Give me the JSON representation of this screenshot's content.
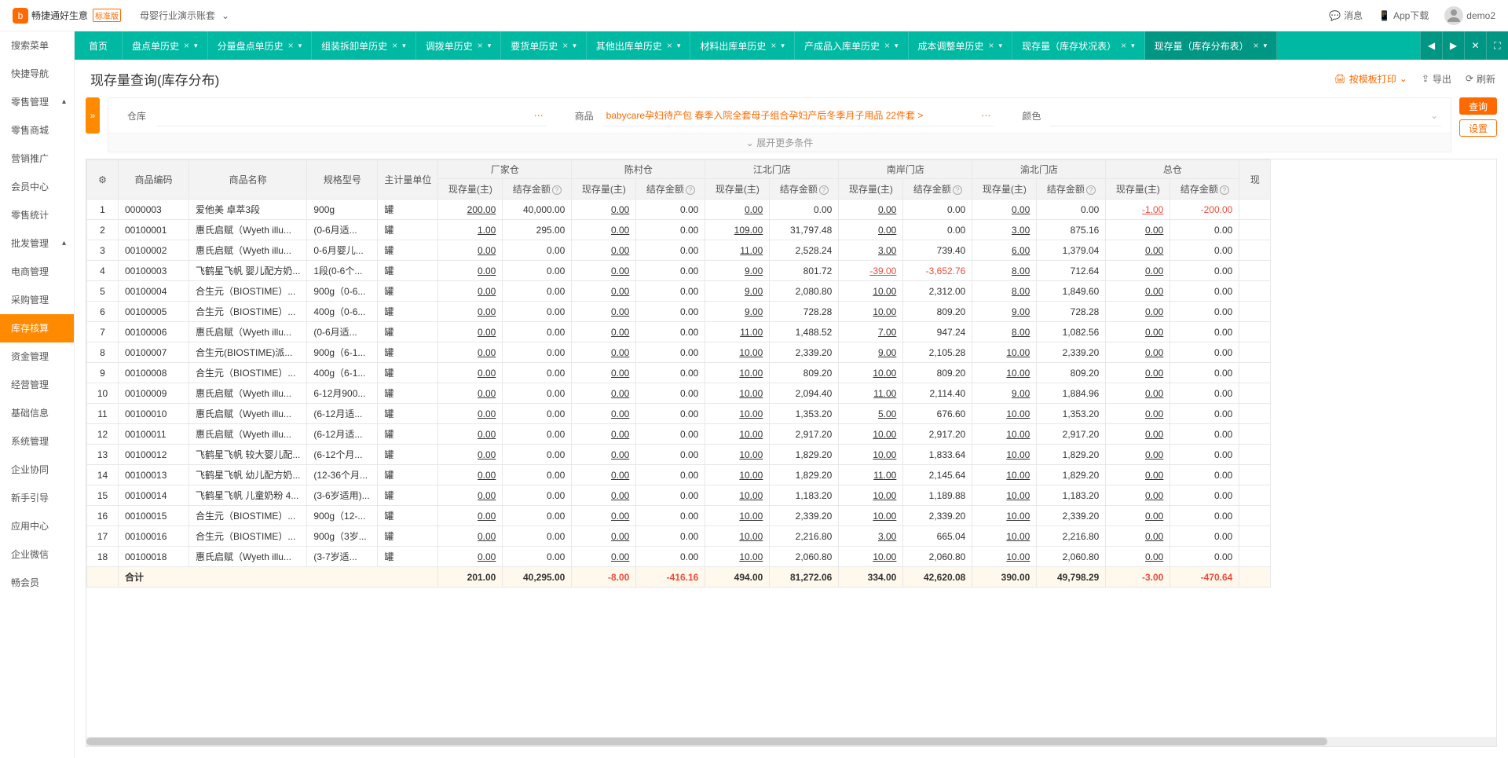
{
  "brand": {
    "name": "畅捷通好生意",
    "edition": "标准版",
    "logo_letter": "b"
  },
  "account_dropdown": "母婴行业演示账套",
  "top_right": {
    "msg": "消息",
    "app": "App下载",
    "user": "demo2"
  },
  "sidebar": {
    "search": "搜索菜单",
    "quick": "快捷导航",
    "groups": [
      {
        "label": "零售管理",
        "expanded": true,
        "children": [
          "零售商城",
          "营销推广",
          "会员中心",
          "零售统计"
        ]
      },
      {
        "label": "批发管理",
        "expanded": true,
        "children": [
          "电商管理",
          "采购管理",
          "库存核算",
          "资金管理",
          "经营管理",
          "基础信息",
          "系统管理",
          "企业协同",
          "新手引导",
          "应用中心",
          "企业微信",
          "畅会员"
        ],
        "active_child": "库存核算"
      }
    ]
  },
  "tabs": {
    "home": "首页",
    "items": [
      "盘点单历史",
      "分量盘点单历史",
      "组装拆卸单历史",
      "调拨单历史",
      "要货单历史",
      "其他出库单历史",
      "材料出库单历史",
      "产成品入库单历史",
      "成本调整单历史",
      "现存量（库存状况表）",
      "现存量（库存分布表）"
    ],
    "active_index": 10
  },
  "page": {
    "title": "现存量查询(库存分布)",
    "print": "按模板打印",
    "export": "导出",
    "refresh": "刷新"
  },
  "filters": {
    "warehouse_label": "仓库",
    "product_label": "商品",
    "product_value": "babycare孕妇待产包 春季入院全套母子组合孕妇产后冬季月子用品 22件套 >",
    "color_label": "颜色",
    "expand": "展开更多条件",
    "query": "查询",
    "setting": "设置"
  },
  "table": {
    "gear": "⚙",
    "headers_fixed": [
      "商品编码",
      "商品名称",
      "规格型号",
      "主计量单位"
    ],
    "warehouses": [
      "厂家仓",
      "陈村仓",
      "江北门店",
      "南岸门店",
      "渝北门店",
      "总仓"
    ],
    "sub_qty": "现存量(主)",
    "sub_amt": "结存金额",
    "extra_qty": "现",
    "rows": [
      {
        "n": 1,
        "code": "0000003",
        "name": "爱他美 卓萃3段",
        "spec": "900g",
        "unit": "罐",
        "v": [
          [
            "200.00",
            "40,000.00"
          ],
          [
            "0.00",
            "0.00"
          ],
          [
            "0.00",
            "0.00"
          ],
          [
            "0.00",
            "0.00"
          ],
          [
            "0.00",
            "0.00"
          ],
          [
            "-1.00",
            "-200.00"
          ]
        ],
        "neg": [
          5
        ]
      },
      {
        "n": 2,
        "code": "00100001",
        "name": "惠氏启赋（Wyeth illu...",
        "spec": "(0-6月适...",
        "unit": "罐",
        "v": [
          [
            "1.00",
            "295.00"
          ],
          [
            "0.00",
            "0.00"
          ],
          [
            "109.00",
            "31,797.48"
          ],
          [
            "0.00",
            "0.00"
          ],
          [
            "3.00",
            "875.16"
          ],
          [
            "0.00",
            "0.00"
          ]
        ]
      },
      {
        "n": 3,
        "code": "00100002",
        "name": "惠氏启赋（Wyeth illu...",
        "spec": "0-6月婴儿...",
        "unit": "罐",
        "v": [
          [
            "0.00",
            "0.00"
          ],
          [
            "0.00",
            "0.00"
          ],
          [
            "11.00",
            "2,528.24"
          ],
          [
            "3.00",
            "739.40"
          ],
          [
            "6.00",
            "1,379.04"
          ],
          [
            "0.00",
            "0.00"
          ]
        ]
      },
      {
        "n": 4,
        "code": "00100003",
        "name": "飞鹤星飞帆 婴儿配方奶...",
        "spec": "1段(0-6个...",
        "unit": "罐",
        "v": [
          [
            "0.00",
            "0.00"
          ],
          [
            "0.00",
            "0.00"
          ],
          [
            "9.00",
            "801.72"
          ],
          [
            "-39.00",
            "-3,652.76"
          ],
          [
            "8.00",
            "712.64"
          ],
          [
            "0.00",
            "0.00"
          ]
        ],
        "neg": [
          3
        ]
      },
      {
        "n": 5,
        "code": "00100004",
        "name": "合生元（BIOSTIME）...",
        "spec": "900g（0-6...",
        "unit": "罐",
        "v": [
          [
            "0.00",
            "0.00"
          ],
          [
            "0.00",
            "0.00"
          ],
          [
            "9.00",
            "2,080.80"
          ],
          [
            "10.00",
            "2,312.00"
          ],
          [
            "8.00",
            "1,849.60"
          ],
          [
            "0.00",
            "0.00"
          ]
        ]
      },
      {
        "n": 6,
        "code": "00100005",
        "name": "合生元（BIOSTIME）...",
        "spec": "400g（0-6...",
        "unit": "罐",
        "v": [
          [
            "0.00",
            "0.00"
          ],
          [
            "0.00",
            "0.00"
          ],
          [
            "9.00",
            "728.28"
          ],
          [
            "10.00",
            "809.20"
          ],
          [
            "9.00",
            "728.28"
          ],
          [
            "0.00",
            "0.00"
          ]
        ]
      },
      {
        "n": 7,
        "code": "00100006",
        "name": "惠氏启赋（Wyeth illu...",
        "spec": "(0-6月适...",
        "unit": "罐",
        "v": [
          [
            "0.00",
            "0.00"
          ],
          [
            "0.00",
            "0.00"
          ],
          [
            "11.00",
            "1,488.52"
          ],
          [
            "7.00",
            "947.24"
          ],
          [
            "8.00",
            "1,082.56"
          ],
          [
            "0.00",
            "0.00"
          ]
        ]
      },
      {
        "n": 8,
        "code": "00100007",
        "name": "合生元(BIOSTIME)派...",
        "spec": "900g（6-1...",
        "unit": "罐",
        "v": [
          [
            "0.00",
            "0.00"
          ],
          [
            "0.00",
            "0.00"
          ],
          [
            "10.00",
            "2,339.20"
          ],
          [
            "9.00",
            "2,105.28"
          ],
          [
            "10.00",
            "2,339.20"
          ],
          [
            "0.00",
            "0.00"
          ]
        ]
      },
      {
        "n": 9,
        "code": "00100008",
        "name": "合生元（BIOSTIME）...",
        "spec": "400g（6-1...",
        "unit": "罐",
        "v": [
          [
            "0.00",
            "0.00"
          ],
          [
            "0.00",
            "0.00"
          ],
          [
            "10.00",
            "809.20"
          ],
          [
            "10.00",
            "809.20"
          ],
          [
            "10.00",
            "809.20"
          ],
          [
            "0.00",
            "0.00"
          ]
        ]
      },
      {
        "n": 10,
        "code": "00100009",
        "name": "惠氏启赋（Wyeth illu...",
        "spec": "6-12月900...",
        "unit": "罐",
        "v": [
          [
            "0.00",
            "0.00"
          ],
          [
            "0.00",
            "0.00"
          ],
          [
            "10.00",
            "2,094.40"
          ],
          [
            "11.00",
            "2,114.40"
          ],
          [
            "9.00",
            "1,884.96"
          ],
          [
            "0.00",
            "0.00"
          ]
        ]
      },
      {
        "n": 11,
        "code": "00100010",
        "name": "惠氏启赋（Wyeth illu...",
        "spec": "(6-12月适...",
        "unit": "罐",
        "v": [
          [
            "0.00",
            "0.00"
          ],
          [
            "0.00",
            "0.00"
          ],
          [
            "10.00",
            "1,353.20"
          ],
          [
            "5.00",
            "676.60"
          ],
          [
            "10.00",
            "1,353.20"
          ],
          [
            "0.00",
            "0.00"
          ]
        ]
      },
      {
        "n": 12,
        "code": "00100011",
        "name": "惠氏启赋（Wyeth illu...",
        "spec": "(6-12月适...",
        "unit": "罐",
        "v": [
          [
            "0.00",
            "0.00"
          ],
          [
            "0.00",
            "0.00"
          ],
          [
            "10.00",
            "2,917.20"
          ],
          [
            "10.00",
            "2,917.20"
          ],
          [
            "10.00",
            "2,917.20"
          ],
          [
            "0.00",
            "0.00"
          ]
        ]
      },
      {
        "n": 13,
        "code": "00100012",
        "name": "飞鹤星飞帆 较大婴儿配...",
        "spec": "(6-12个月...",
        "unit": "罐",
        "v": [
          [
            "0.00",
            "0.00"
          ],
          [
            "0.00",
            "0.00"
          ],
          [
            "10.00",
            "1,829.20"
          ],
          [
            "10.00",
            "1,833.64"
          ],
          [
            "10.00",
            "1,829.20"
          ],
          [
            "0.00",
            "0.00"
          ]
        ]
      },
      {
        "n": 14,
        "code": "00100013",
        "name": "飞鹤星飞帆 幼儿配方奶...",
        "spec": "(12-36个月...",
        "unit": "罐",
        "v": [
          [
            "0.00",
            "0.00"
          ],
          [
            "0.00",
            "0.00"
          ],
          [
            "10.00",
            "1,829.20"
          ],
          [
            "11.00",
            "2,145.64"
          ],
          [
            "10.00",
            "1,829.20"
          ],
          [
            "0.00",
            "0.00"
          ]
        ]
      },
      {
        "n": 15,
        "code": "00100014",
        "name": "飞鹤星飞帆 儿童奶粉 4...",
        "spec": "(3-6岁适用)...",
        "unit": "罐",
        "v": [
          [
            "0.00",
            "0.00"
          ],
          [
            "0.00",
            "0.00"
          ],
          [
            "10.00",
            "1,183.20"
          ],
          [
            "10.00",
            "1,189.88"
          ],
          [
            "10.00",
            "1,183.20"
          ],
          [
            "0.00",
            "0.00"
          ]
        ]
      },
      {
        "n": 16,
        "code": "00100015",
        "name": "合生元（BIOSTIME）...",
        "spec": "900g（12-...",
        "unit": "罐",
        "v": [
          [
            "0.00",
            "0.00"
          ],
          [
            "0.00",
            "0.00"
          ],
          [
            "10.00",
            "2,339.20"
          ],
          [
            "10.00",
            "2,339.20"
          ],
          [
            "10.00",
            "2,339.20"
          ],
          [
            "0.00",
            "0.00"
          ]
        ]
      },
      {
        "n": 17,
        "code": "00100016",
        "name": "合生元（BIOSTIME）...",
        "spec": "900g（3岁...",
        "unit": "罐",
        "v": [
          [
            "0.00",
            "0.00"
          ],
          [
            "0.00",
            "0.00"
          ],
          [
            "10.00",
            "2,216.80"
          ],
          [
            "3.00",
            "665.04"
          ],
          [
            "10.00",
            "2,216.80"
          ],
          [
            "0.00",
            "0.00"
          ]
        ]
      },
      {
        "n": 18,
        "code": "00100018",
        "name": "惠氏启赋（Wyeth illu...",
        "spec": "(3-7岁适...",
        "unit": "罐",
        "v": [
          [
            "0.00",
            "0.00"
          ],
          [
            "0.00",
            "0.00"
          ],
          [
            "10.00",
            "2,060.80"
          ],
          [
            "10.00",
            "2,060.80"
          ],
          [
            "10.00",
            "2,060.80"
          ],
          [
            "0.00",
            "0.00"
          ]
        ]
      }
    ],
    "total_label": "合计",
    "totals": [
      [
        "201.00",
        "40,295.00"
      ],
      [
        "-8.00",
        "-416.16"
      ],
      [
        "494.00",
        "81,272.06"
      ],
      [
        "334.00",
        "42,620.08"
      ],
      [
        "390.00",
        "49,798.29"
      ],
      [
        "-3.00",
        "-470.64"
      ]
    ],
    "total_neg": [
      1,
      5
    ]
  }
}
